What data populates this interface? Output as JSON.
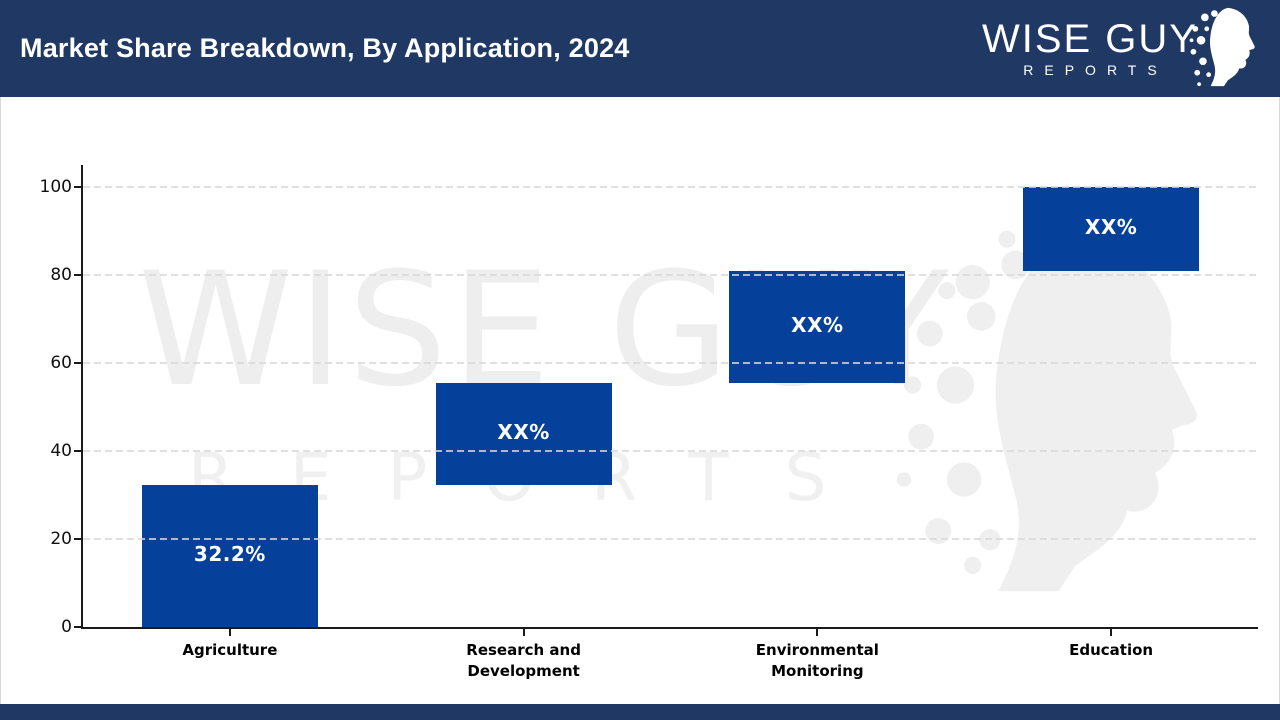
{
  "header": {
    "title": "Market Share Breakdown, By Application, 2024",
    "bg_color": "#1f3864",
    "logo": {
      "line1": "WISE GUY",
      "line2": "REPORTS"
    }
  },
  "watermark": {
    "line1": "WISE GUY",
    "line2": "REPORTS"
  },
  "chart_data": {
    "type": "bar",
    "subtype": "waterfall",
    "title": "Market Share Breakdown, By Application, 2024",
    "categories": [
      "Agriculture",
      "Research and\nDevelopment",
      "Environmental\nMonitoring",
      "Education"
    ],
    "segments": [
      {
        "category": "Agriculture",
        "start": 0,
        "end": 32.2,
        "label": "32.2%"
      },
      {
        "category": "Research and Development",
        "start": 32.2,
        "end": 55.5,
        "label": "XX%"
      },
      {
        "category": "Environmental Monitoring",
        "start": 55.5,
        "end": 81,
        "label": "XX%"
      },
      {
        "category": "Education",
        "start": 81,
        "end": 100,
        "label": "XX%"
      }
    ],
    "yticks": [
      0,
      20,
      40,
      60,
      80,
      100
    ],
    "ylim": [
      0,
      105
    ],
    "grid": true,
    "legend": false,
    "bar_color": "#05419b",
    "bar_label_color": "#ffffff",
    "gridline_color": "#d9d9d9",
    "axis_color": "#1a1a1a"
  }
}
